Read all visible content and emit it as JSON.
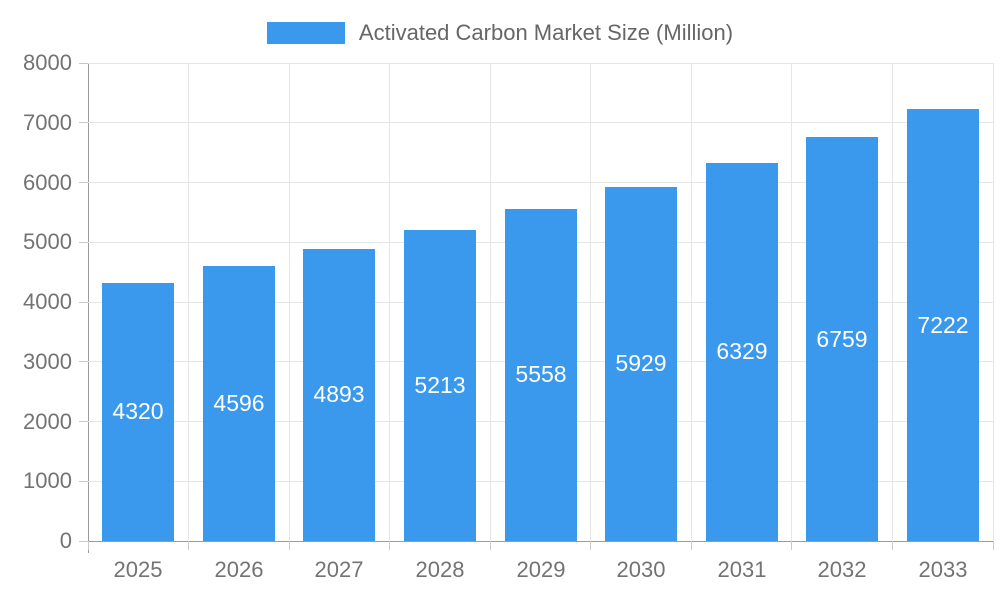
{
  "legend": {
    "label": "Activated Carbon Market Size (Million)"
  },
  "chart_data": {
    "type": "bar",
    "title": "Activated Carbon Market Size (Million)",
    "categories": [
      "2025",
      "2026",
      "2027",
      "2028",
      "2029",
      "2030",
      "2031",
      "2032",
      "2033"
    ],
    "values": [
      4320,
      4596,
      4893,
      5213,
      5558,
      5929,
      6329,
      6759,
      7222
    ],
    "series": [
      {
        "name": "Activated Carbon Market Size (Million)",
        "values": [
          4320,
          4596,
          4893,
          5213,
          5558,
          5929,
          6329,
          6759,
          7222
        ]
      }
    ],
    "xlabel": "",
    "ylabel": "",
    "ylim": [
      0,
      8000
    ],
    "ytick_step": 1000,
    "yticks": [
      0,
      1000,
      2000,
      3000,
      4000,
      5000,
      6000,
      7000,
      8000
    ],
    "grid": true,
    "legend_position": "top",
    "value_labels": "centered-inside-bars",
    "colors": {
      "bar": "#3a99ec",
      "value_label": "#ffffff",
      "grid": "#e6e6e6",
      "axis": "#9b9b9b",
      "tick": "#c9c9c9",
      "tick_label": "#737373",
      "legend_text": "#666666",
      "background": "#ffffff"
    }
  }
}
